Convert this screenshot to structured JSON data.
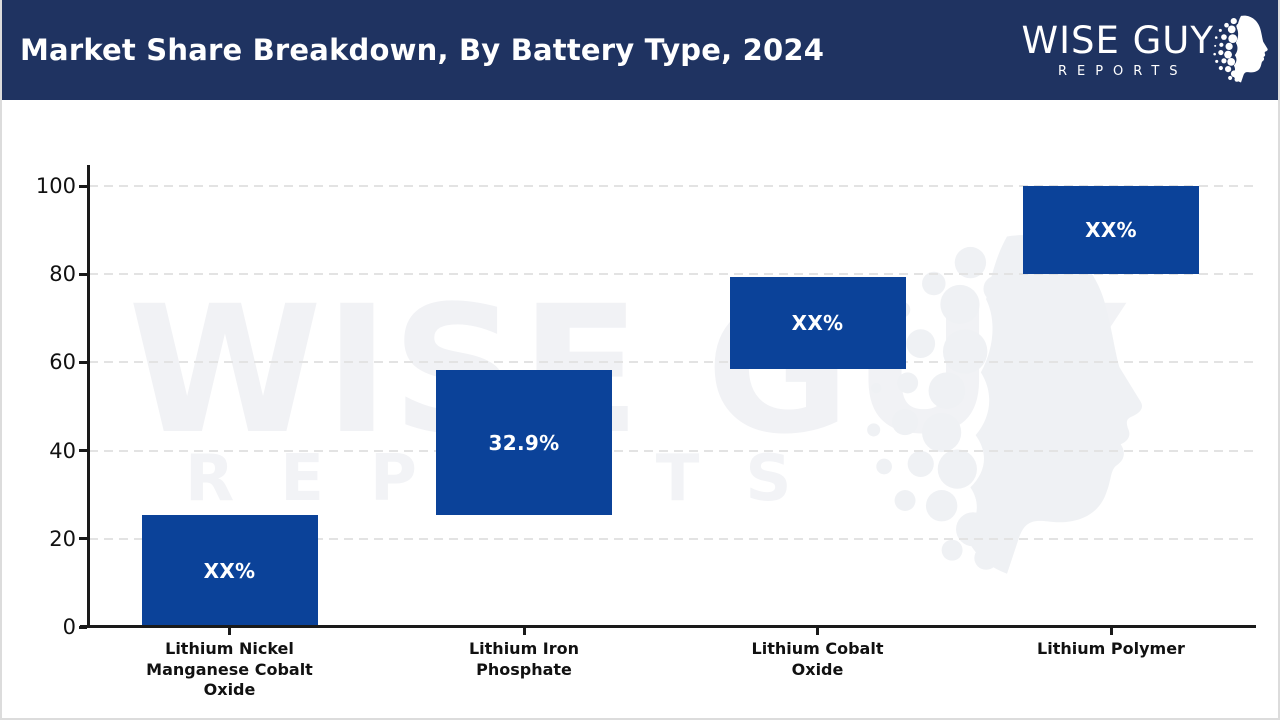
{
  "header": {
    "title": "Market Share Breakdown, By Battery Type, 2024",
    "logo": {
      "wordmark": "WISE GUY",
      "subtext": "REPORTS",
      "icon": "dotted-head-profile"
    }
  },
  "watermark": {
    "wordmark": "WISE GUY",
    "subtext": "REPORTS",
    "icon": "dotted-head-profile"
  },
  "colors": {
    "header_bg": "#1f3361",
    "bar": "#0b4299",
    "bar_label_text": "#ffffff",
    "watermark": "#f0f1f4",
    "gridline": "#e3e3e3",
    "axis": "#1a1a1a",
    "frame": "#dcdcdc"
  },
  "chart_data": {
    "type": "bar",
    "subtype": "floating-waterfall",
    "title": "Market Share Breakdown, By Battery Type, 2024",
    "categories": [
      "Lithium Nickel Manganese Cobalt Oxide",
      "Lithium Iron Phosphate",
      "Lithium Cobalt Oxide",
      "Lithium Polymer"
    ],
    "category_lines": [
      [
        "Lithium Nickel",
        "Manganese Cobalt",
        "Oxide"
      ],
      [
        "Lithium Iron",
        "Phosphate"
      ],
      [
        "Lithium Cobalt",
        "Oxide"
      ],
      [
        "Lithium Polymer"
      ]
    ],
    "segments": [
      {
        "category": "Lithium Nickel Manganese Cobalt Oxide",
        "start": 0,
        "end": 25.3,
        "label": "XX%"
      },
      {
        "category": "Lithium Iron Phosphate",
        "start": 25.3,
        "end": 58.2,
        "label": "32.9%"
      },
      {
        "category": "Lithium Cobalt Oxide",
        "start": 58.4,
        "end": 79.4,
        "label": "XX%"
      },
      {
        "category": "Lithium Polymer",
        "start": 80,
        "end": 100,
        "label": "XX%"
      }
    ],
    "xlabel": "",
    "ylabel": "",
    "ylim": [
      0,
      100
    ],
    "yticks": [
      0,
      20,
      40,
      60,
      80,
      100
    ],
    "grid": "horizontal-dashed",
    "legend": "none",
    "bar_color": "#0b4299"
  }
}
